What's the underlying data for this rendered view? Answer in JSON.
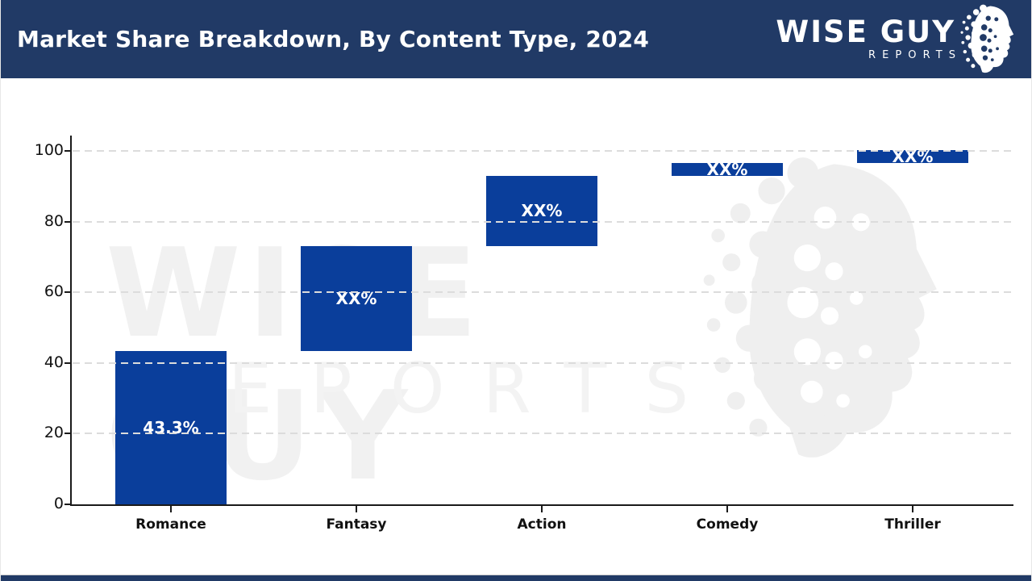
{
  "header": {
    "title": "Market Share Breakdown, By Content Type, 2024",
    "bg_color": "#213A66",
    "logo": {
      "line1": "WISE GUY",
      "line2": "REPORTS"
    }
  },
  "watermark": {
    "line1": "WISE GUY",
    "line2": "REPORTS"
  },
  "footer": {
    "bg_color": "#213A66"
  },
  "chart_data": {
    "type": "bar",
    "subtype": "waterfall",
    "title": "Market Share Breakdown, By Content Type, 2024",
    "categories": [
      "Romance",
      "Fantasy",
      "Action",
      "Comedy",
      "Thriller"
    ],
    "segments": [
      {
        "category": "Romance",
        "start": 0,
        "end": 43.3,
        "value": 43.3,
        "label": "43.3%"
      },
      {
        "category": "Fantasy",
        "start": 43.3,
        "end": 73.0,
        "value": 29.7,
        "label": "XX%"
      },
      {
        "category": "Action",
        "start": 73.0,
        "end": 93.0,
        "value": 20.0,
        "label": "XX%"
      },
      {
        "category": "Comedy",
        "start": 93.0,
        "end": 96.5,
        "value": 3.5,
        "label": "XX%"
      },
      {
        "category": "Thriller",
        "start": 96.5,
        "end": 100.3,
        "value": 3.8,
        "label": "XX%"
      }
    ],
    "yticks": [
      0,
      20,
      40,
      60,
      80,
      100
    ],
    "ylim": [
      0,
      104
    ],
    "xlabel": "",
    "ylabel": "",
    "bar_color": "#0A3E9B",
    "grid": "horizontal-dashed",
    "legend_position": "none"
  }
}
